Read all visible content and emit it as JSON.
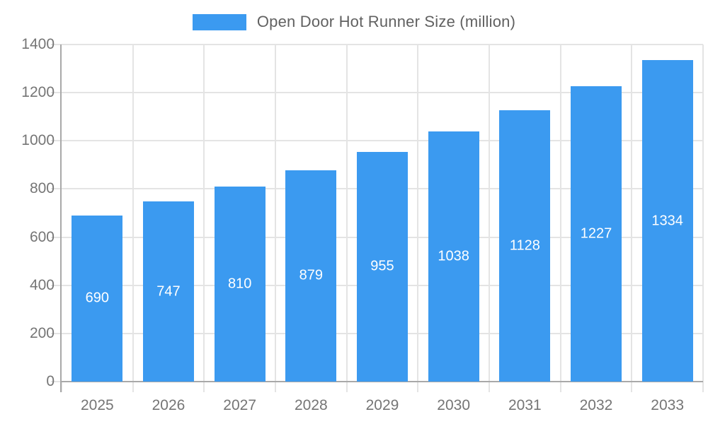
{
  "chart_data": {
    "type": "bar",
    "title": "Open Door Hot Runner Size (million)",
    "legend_label": "Open Door Hot Runner Size (million)",
    "legend_position": "top",
    "categories": [
      "2025",
      "2026",
      "2027",
      "2028",
      "2029",
      "2030",
      "2031",
      "2032",
      "2033"
    ],
    "values": [
      690,
      747,
      810,
      879,
      955,
      1038,
      1128,
      1227,
      1334
    ],
    "xlabel": "",
    "ylabel": "",
    "ylim": [
      0,
      1400
    ],
    "ytick_step": 200,
    "ytick_labels": [
      "0",
      "200",
      "400",
      "600",
      "800",
      "1000",
      "1200",
      "1400"
    ],
    "grid": true,
    "value_labels_inside_bars": true,
    "colors": {
      "bar": "#3b9af0",
      "bar_value_text": "#ffffff",
      "axis_text": "#757575",
      "legend_text": "#616161",
      "gridline": "#e4e4e4",
      "axis_line": "#a9a9a9",
      "background": "#ffffff"
    }
  }
}
